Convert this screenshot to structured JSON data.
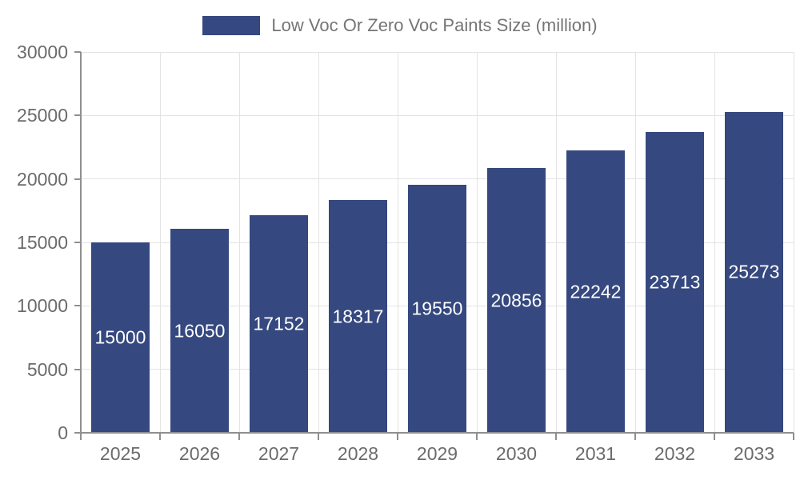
{
  "legend": {
    "label": "Low Voc Or Zero Voc Paints Size (million)"
  },
  "colors": {
    "bar": "#35487f",
    "legend_text": "#757575",
    "axis_label": "#6b6b6b",
    "value_label": "#ffffff",
    "grid_line": "#e3e3e3",
    "axis_line": "#8f8f8f",
    "background": "#ffffff"
  },
  "chart_data": {
    "type": "bar",
    "title": "Low Voc Or Zero Voc Paints Size (million)",
    "categories": [
      "2025",
      "2026",
      "2027",
      "2028",
      "2029",
      "2030",
      "2031",
      "2032",
      "2033"
    ],
    "values": [
      15000,
      16050,
      17152,
      18317,
      19550,
      20856,
      22242,
      23713,
      25273
    ],
    "series": [
      {
        "name": "Low Voc Or Zero Voc Paints Size (million)",
        "values": [
          15000,
          16050,
          17152,
          18317,
          19550,
          20856,
          22242,
          23713,
          25273
        ]
      }
    ],
    "xlabel": "",
    "ylabel": "",
    "ylim": [
      0,
      30000
    ],
    "yticks": [
      0,
      5000,
      10000,
      15000,
      20000,
      25000,
      30000
    ],
    "grid": true,
    "legend_position": "top-center",
    "value_label_position": "inside-center"
  }
}
